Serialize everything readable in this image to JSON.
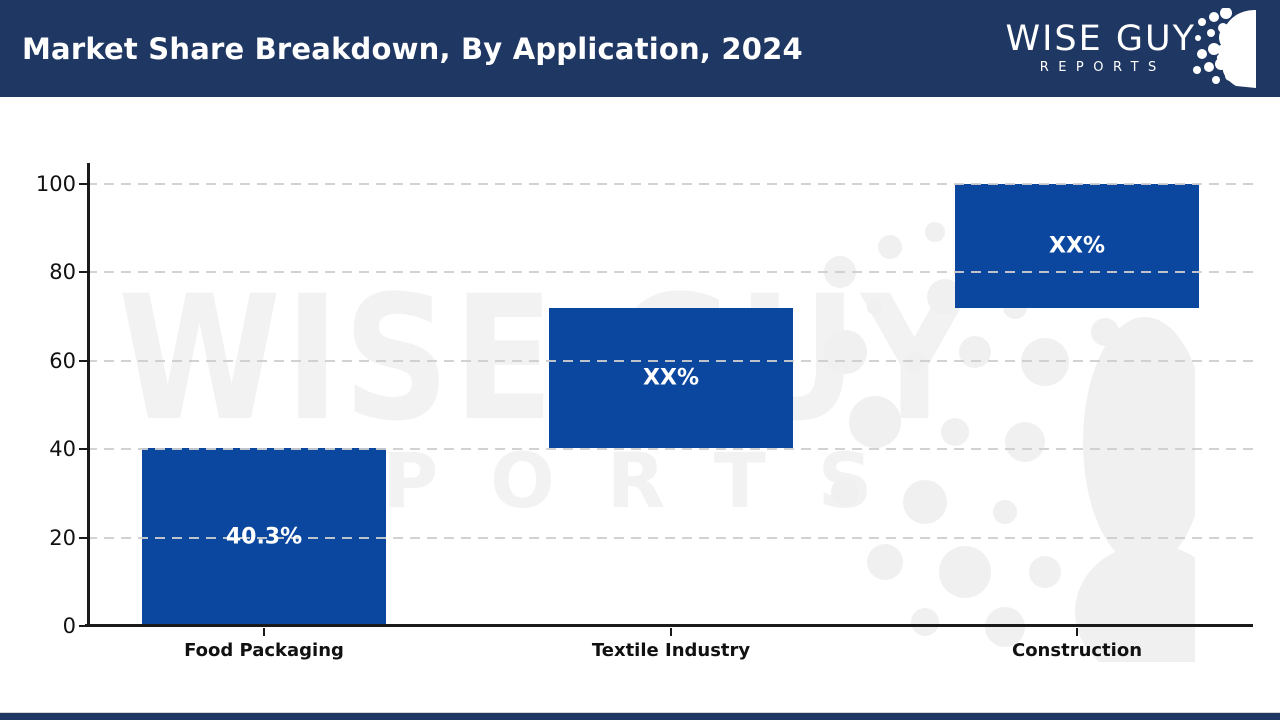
{
  "header": {
    "title": "Market Share Breakdown, By Application, 2024",
    "logo": {
      "primary": "WISE GUY",
      "secondary": "REPORTS"
    }
  },
  "watermark": {
    "primary": "WISE GUY",
    "secondary": "REPORTS"
  },
  "colors": {
    "header_bg": "#1f3763",
    "bar": "#0b479f",
    "axis": "#1a1a1a",
    "grid": "#cecece",
    "watermark": "#f2f2f2",
    "bar_label": "#ffffff",
    "title_text": "#ffffff"
  },
  "chart_data": {
    "type": "bar",
    "subtype": "waterfall-stacked",
    "title": "Market Share Breakdown, By Application, 2024",
    "categories": [
      "Food Packaging",
      "Textile Industry",
      "Construction"
    ],
    "bars": [
      {
        "category": "Food Packaging",
        "start": 0,
        "end": 40.3,
        "label": "40.3%"
      },
      {
        "category": "Textile Industry",
        "start": 40.3,
        "end": 72,
        "label": "XX%"
      },
      {
        "category": "Construction",
        "start": 72,
        "end": 100,
        "label": "XX%"
      }
    ],
    "xlabel": "",
    "ylabel": "",
    "yticks": [
      0,
      20,
      40,
      60,
      80,
      100
    ],
    "ylim": [
      0,
      105
    ],
    "grid": "horizontal-dashed",
    "legend": "none"
  }
}
